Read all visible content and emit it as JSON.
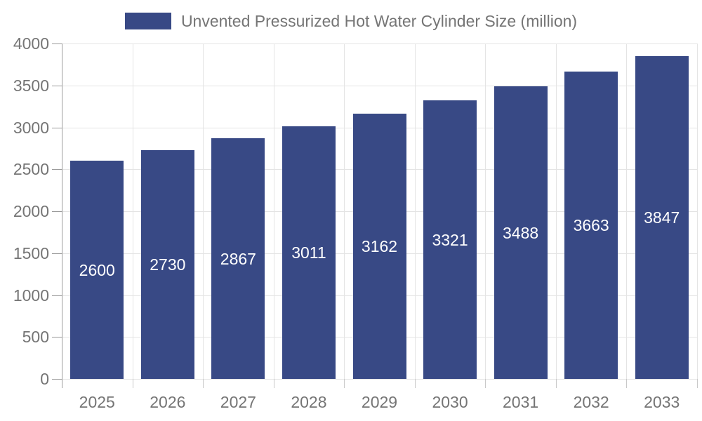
{
  "chart_data": {
    "type": "bar",
    "title": "Unvented Pressurized Hot Water Cylinder Size (million)",
    "legend": {
      "label": "Unvented Pressurized Hot Water Cylinder Size (million)",
      "position": "top-center"
    },
    "categories": [
      "2025",
      "2026",
      "2027",
      "2028",
      "2029",
      "2030",
      "2031",
      "2032",
      "2033"
    ],
    "values": [
      2600,
      2730,
      2867,
      3011,
      3162,
      3321,
      3488,
      3663,
      3847
    ],
    "yticks": [
      0,
      500,
      1000,
      1500,
      2000,
      2500,
      3000,
      3500,
      4000
    ],
    "xlabel": "",
    "ylabel": "",
    "ylim": [
      0,
      4000
    ],
    "grid": true,
    "bar_label_position": "inside-middle",
    "colors": {
      "bar": "#384985",
      "bar_value_label": "#ffffff",
      "axis_text": "#757575",
      "legend_text": "#757575",
      "grid_line": "#e4e4e4",
      "axis_line": "#9b9b9b",
      "boundary_tick": "#c9c9c9",
      "background": "#ffffff"
    }
  }
}
